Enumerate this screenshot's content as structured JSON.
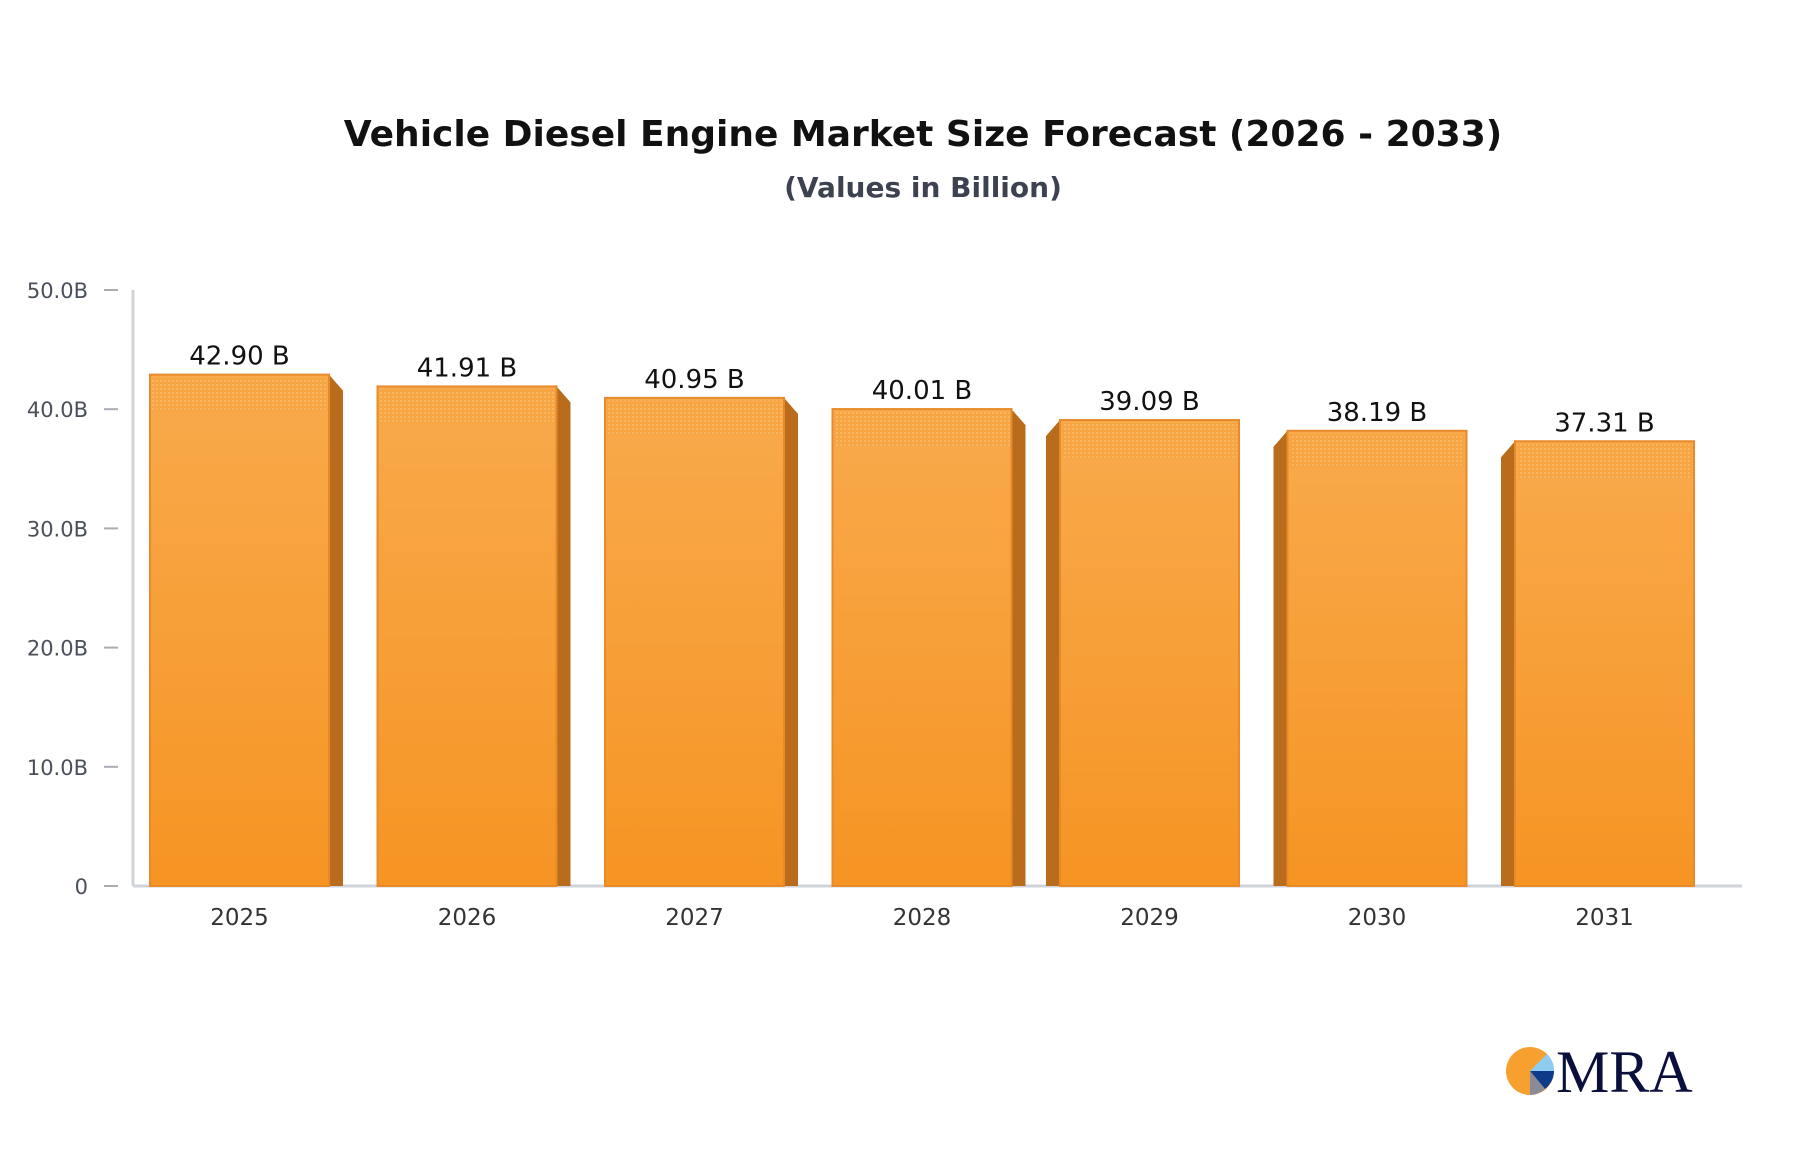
{
  "chart_data": {
    "type": "bar",
    "title": "Vehicle Diesel Engine Market Size Forecast (2026 - 2033)",
    "subtitle": "(Values in Billion)",
    "categories": [
      "2025",
      "2026",
      "2027",
      "2028",
      "2029",
      "2030",
      "2031"
    ],
    "values": [
      42.9,
      41.91,
      40.95,
      40.01,
      39.09,
      38.19,
      37.31
    ],
    "data_labels": [
      "42.90 B",
      "41.91 B",
      "40.95 B",
      "40.01 B",
      "39.09 B",
      "38.19 B",
      "37.31 B"
    ],
    "ylim": [
      0,
      50
    ],
    "yticks": [
      0,
      10,
      20,
      30,
      40,
      50
    ],
    "ytick_labels": [
      "0",
      "10.0B",
      "20.0B",
      "30.0B",
      "40.0B",
      "50.0B"
    ],
    "grid": false,
    "style": "3d-bar",
    "colors": {
      "bar": "#f7a13d",
      "bar_side": "#b96d1c",
      "bar_edge": "#e8892a",
      "axis": "#d0d3da"
    }
  },
  "logo": {
    "text": "MRA",
    "colors": [
      "#f7a030",
      "#8fcdf0",
      "#0d3b8a",
      "#0b0f3d"
    ]
  }
}
